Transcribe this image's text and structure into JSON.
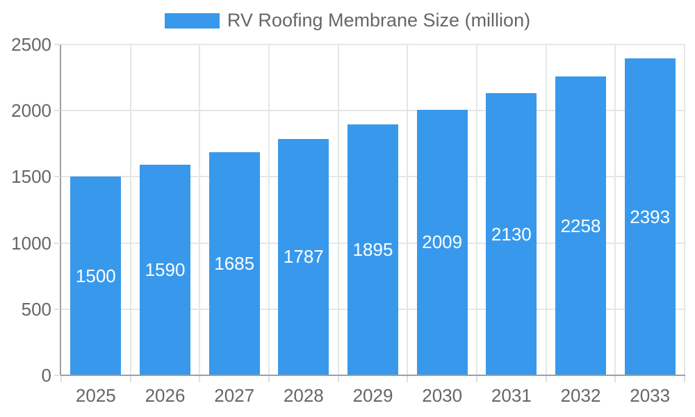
{
  "legend": {
    "label": "RV Roofing Membrane Size (million)"
  },
  "chart_data": {
    "type": "bar",
    "title": "RV Roofing Membrane Size (million)",
    "categories": [
      "2025",
      "2026",
      "2027",
      "2028",
      "2029",
      "2030",
      "2031",
      "2032",
      "2033"
    ],
    "values": [
      1500,
      1590,
      1685,
      1787,
      1895,
      2009,
      2130,
      2258,
      2393
    ],
    "xlabel": "",
    "ylabel": "",
    "ylim": [
      0,
      2500
    ],
    "yticks": [
      0,
      500,
      1000,
      1500,
      2000,
      2500
    ],
    "grid": true,
    "legend_position": "top",
    "value_labels": "inside-center",
    "colors": {
      "bar": "#3899EC",
      "grid": "#E6E6E6",
      "tick": "#E0E0E0",
      "axis": "#9E9E9E",
      "axis_text": "#666666",
      "legend_text": "#666666",
      "value_text": "#FFFFFF",
      "background": "#FFFFFF"
    }
  }
}
